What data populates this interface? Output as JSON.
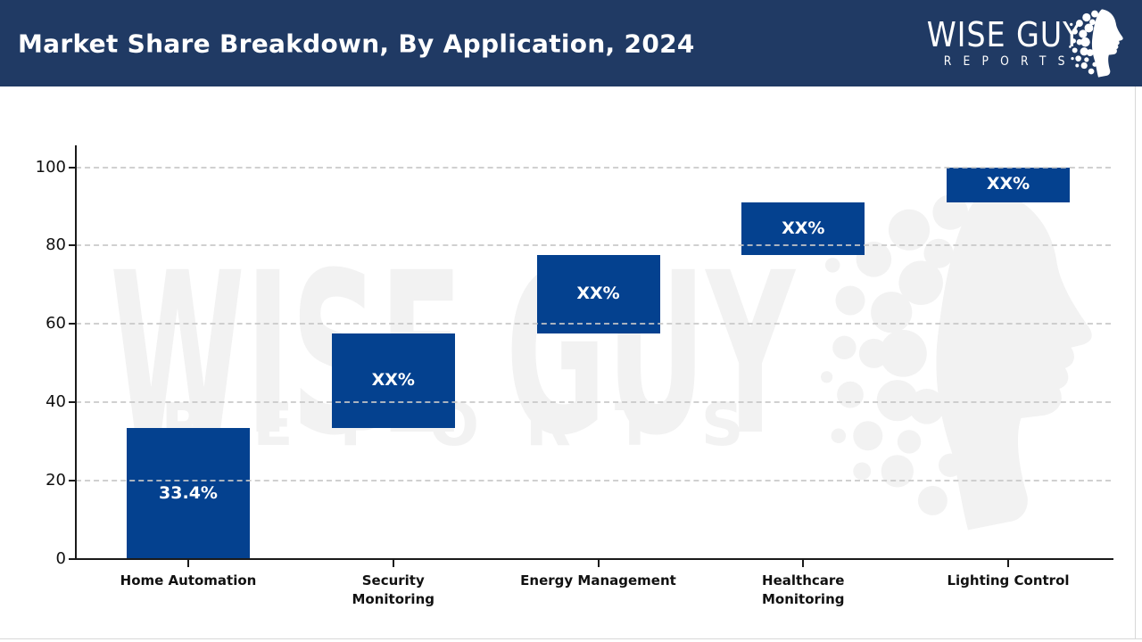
{
  "header": {
    "title": "Market Share Breakdown, By Application, 2024",
    "brand": {
      "name_top": "WISE GUY",
      "name_bottom": "REPORTS"
    }
  },
  "watermark": {
    "line1": "WISE GUY",
    "line2": "REPORTS"
  },
  "chart_data": {
    "type": "bar",
    "subtype": "waterfall",
    "title": "Market Share Breakdown, By Application, 2024",
    "unit": "%",
    "categories": [
      {
        "lines": [
          "Home Automation"
        ]
      },
      {
        "lines": [
          "Security",
          "Monitoring"
        ]
      },
      {
        "lines": [
          "Energy Management"
        ]
      },
      {
        "lines": [
          "Healthcare",
          "Monitoring"
        ]
      },
      {
        "lines": [
          "Lighting Control"
        ]
      }
    ],
    "segments": [
      {
        "name": "Home Automation",
        "start": 0,
        "end": 33.4,
        "label": "33.4%"
      },
      {
        "name": "Security Monitoring",
        "start": 33.4,
        "end": 57.6,
        "label": "XX%"
      },
      {
        "name": "Energy Management",
        "start": 57.6,
        "end": 77.5,
        "label": "XX%"
      },
      {
        "name": "Healthcare Monitoring",
        "start": 77.5,
        "end": 90.9,
        "label": "XX%"
      },
      {
        "name": "Lighting Control",
        "start": 90.9,
        "end": 100,
        "label": "XX%"
      }
    ],
    "y_ticks": [
      0,
      20,
      40,
      60,
      80,
      100
    ],
    "ylim": [
      0,
      105.5
    ],
    "grid": "horizontal-dashed",
    "legend": "none"
  },
  "colors": {
    "header_bg": "#203a64",
    "bar": "#04418f",
    "bar_label": "#ffffff",
    "axis": "#1a1a1a",
    "grid": "#d9d9d9",
    "watermark": "#f2f2f2",
    "frame_line": "#d8d8d8"
  }
}
